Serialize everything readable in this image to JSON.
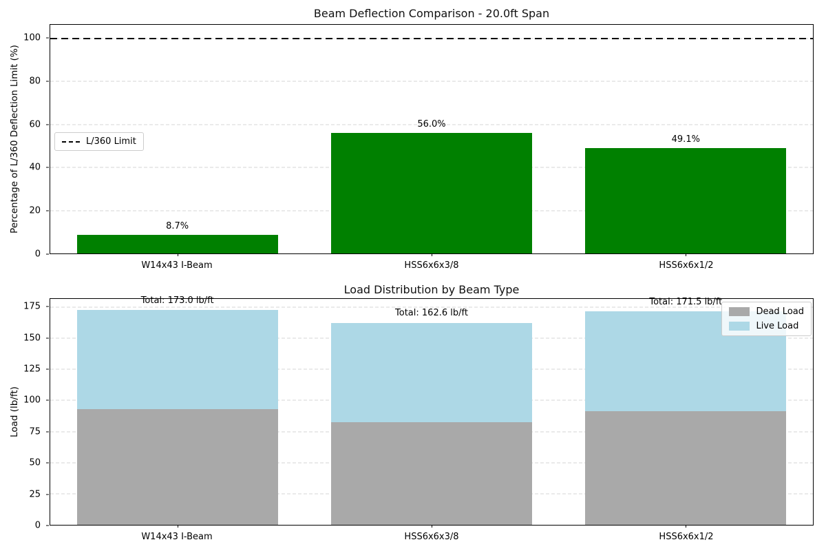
{
  "chart_data": [
    {
      "type": "bar",
      "title": "Beam Deflection Comparison - 20.0ft Span",
      "xlabel": "",
      "ylabel": "Percentage of L/360 Deflection Limit (%)",
      "categories": [
        "W14x43 I-Beam",
        "HSS6x6x3/8",
        "HSS6x6x1/2"
      ],
      "values": [
        8.7,
        56.0,
        49.1
      ],
      "bar_labels": [
        "8.7%",
        "56.0%",
        "49.1%"
      ],
      "bar_color": "#008000",
      "yticks": [
        0,
        20,
        40,
        60,
        80,
        100
      ],
      "ylim": [
        0,
        106.4
      ],
      "grid": "dashed-horizontal",
      "limit_line": {
        "value": 100,
        "label": "L/360 Limit",
        "color": "#000000",
        "style": "dashed"
      },
      "legend_position": "center-left"
    },
    {
      "type": "bar",
      "subtype": "stacked",
      "title": "Load Distribution by Beam Type",
      "xlabel": "",
      "ylabel": "Load (lb/ft)",
      "categories": [
        "W14x43 I-Beam",
        "HSS6x6x3/8",
        "HSS6x6x1/2"
      ],
      "series": [
        {
          "name": "Dead Load",
          "color": "#a9a9a9",
          "values": [
            93.0,
            82.6,
            91.5
          ]
        },
        {
          "name": "Live Load",
          "color": "#add8e6",
          "values": [
            80.0,
            80.0,
            80.0
          ]
        }
      ],
      "totals": [
        173.0,
        162.6,
        171.5
      ],
      "total_labels": [
        "Total: 173.0 lb/ft",
        "Total: 162.6 lb/ft",
        "Total: 171.5 lb/ft"
      ],
      "yticks": [
        0,
        25,
        50,
        75,
        100,
        125,
        150,
        175
      ],
      "ylim": [
        0,
        181.7
      ],
      "grid": "dashed-horizontal",
      "legend_position": "upper-right"
    }
  ]
}
